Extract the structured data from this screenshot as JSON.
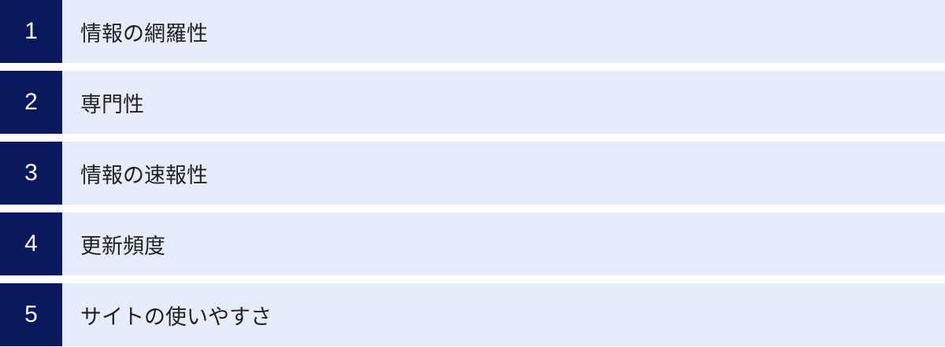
{
  "colors": {
    "number_bg": "#0a185e",
    "row_bg": "#e6ecf9",
    "text": "#222222"
  },
  "items": [
    {
      "number": "1",
      "label": "情報の網羅性"
    },
    {
      "number": "2",
      "label": "専門性"
    },
    {
      "number": "3",
      "label": "情報の速報性"
    },
    {
      "number": "4",
      "label": "更新頻度"
    },
    {
      "number": "5",
      "label": "サイトの使いやすさ"
    }
  ]
}
